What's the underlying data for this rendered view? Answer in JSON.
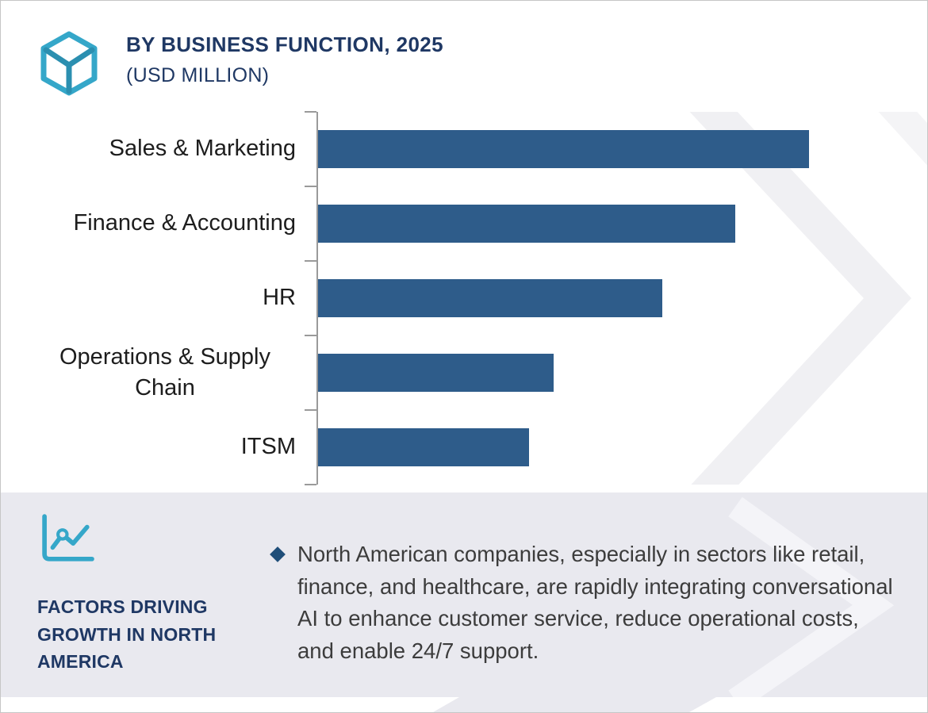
{
  "header": {
    "title": "BY BUSINESS FUNCTION, 2025",
    "subtitle": "(USD MILLION)"
  },
  "icons": {
    "logo": "hexagon-network-icon",
    "growth": "line-chart-icon",
    "bullet": "diamond-bullet-icon"
  },
  "colors": {
    "navy": "#1f3864",
    "teal": "#35a7c9",
    "bar": "#2e5c8a",
    "panel_background": "#e9e9ef",
    "body_text": "#3c3c3c",
    "axis": "#9a9a9a"
  },
  "chart_data": {
    "type": "bar",
    "orientation": "horizontal",
    "title": "BY BUSINESS FUNCTION, 2025",
    "units": "USD MILLION",
    "categories": [
      "Sales & Marketing",
      "Finance & Accounting",
      "HR",
      "Operations & Supply Chain",
      "ITSM"
    ],
    "values": [
      100,
      85,
      70,
      48,
      43
    ],
    "value_note": "No numeric axis shown; values estimated as percent of longest bar",
    "xlim": [
      0,
      124
    ],
    "bar_color": "#2e5c8a",
    "grid": false,
    "legend": false
  },
  "panel": {
    "heading": "FACTORS DRIVING GROWTH IN NORTH AMERICA",
    "bullet_text": "North American companies, especially in sectors like retail, finance, and healthcare, are rapidly integrating conversational AI to enhance customer service, reduce operational costs, and enable 24/7 support."
  }
}
